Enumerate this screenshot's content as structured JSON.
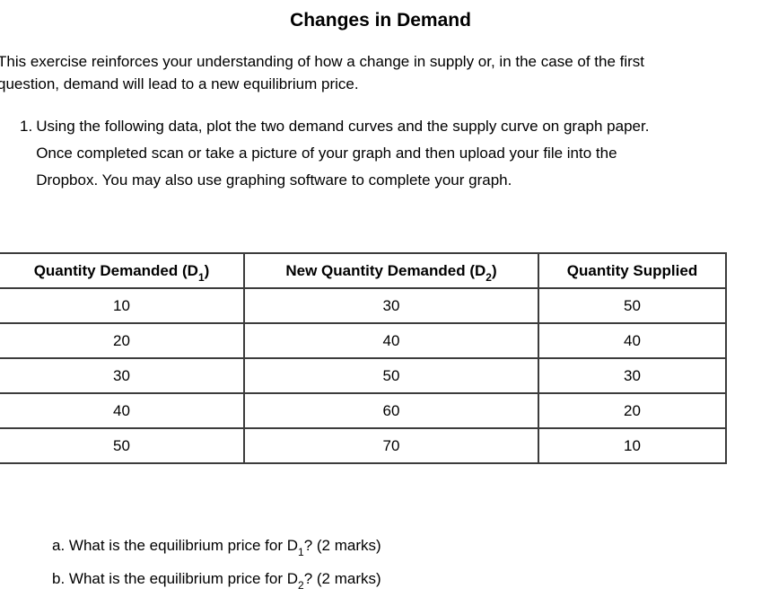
{
  "page": {
    "title": "Changes in Demand",
    "intro_lines": [
      "This exercise reinforces your understanding of how a change in supply or, in the case of the first",
      "question, demand will lead to a new equilibrium price."
    ],
    "instruction": {
      "number": "1.",
      "lines": [
        "Using the following data, plot the two demand curves and the supply curve on graph paper.",
        "Once completed scan or take a picture of your graph and then upload your file into the",
        "Dropbox. You may also use graphing software to complete your graph."
      ]
    }
  },
  "table": {
    "headers": [
      {
        "text": "Quantity Demanded (D",
        "sub": "1",
        "suffix": ")"
      },
      {
        "text": "New Quantity Demanded (D",
        "sub": "2",
        "suffix": ")"
      },
      {
        "text": "Quantity Supplied",
        "sub": "",
        "suffix": ""
      }
    ],
    "rows": [
      [
        "10",
        "30",
        "50"
      ],
      [
        "20",
        "40",
        "40"
      ],
      [
        "30",
        "50",
        "30"
      ],
      [
        "40",
        "60",
        "20"
      ],
      [
        "50",
        "70",
        "10"
      ]
    ]
  },
  "questions": [
    {
      "text": "a. What is the equilibrium price for D",
      "sub": "1",
      "suffix": "? (2 marks)"
    },
    {
      "text": "b. What is the equilibrium price for D",
      "sub": "2",
      "suffix": "? (2 marks)"
    }
  ],
  "colors": {
    "background": "#ffffff",
    "text": "#000000",
    "table_border": "#3c3c3c"
  }
}
